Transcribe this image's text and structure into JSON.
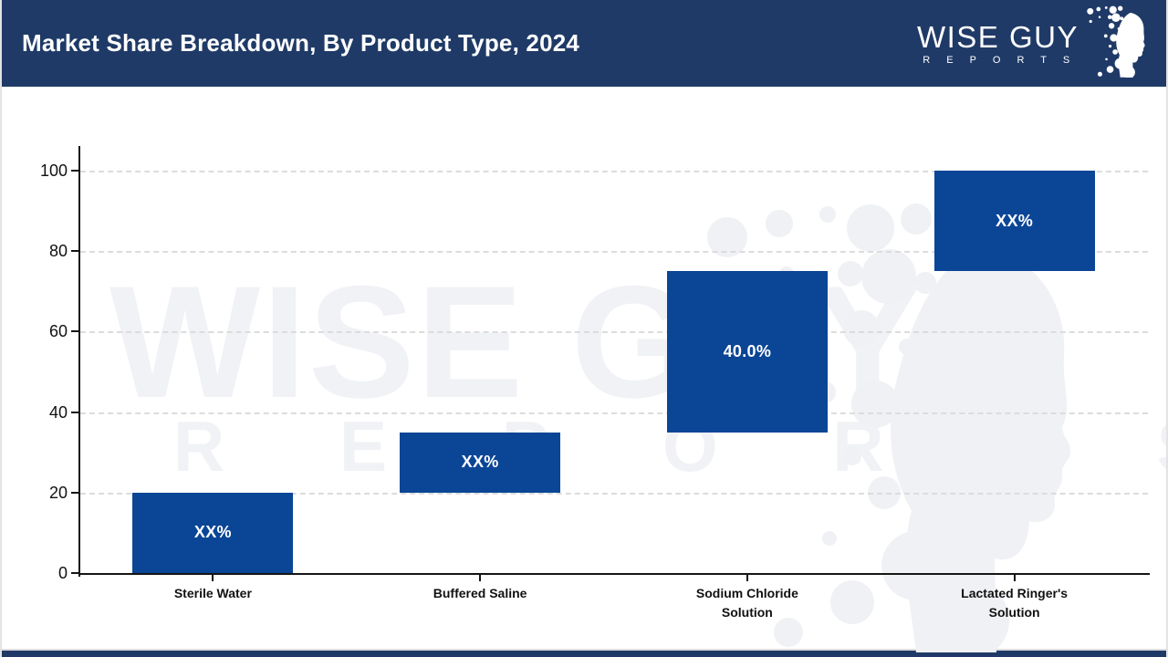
{
  "header": {
    "title": "Market Share Breakdown, By Product Type, 2024",
    "logo": {
      "name": "WISE GUY",
      "sub": "R E P O R T S"
    }
  },
  "watermark": {
    "text": "WISE GUY",
    "sub": "R E P O R T S"
  },
  "colors": {
    "header_bg": "#1f3a67",
    "bar_blue": "#0b4596",
    "gridline": "#dcdcdc",
    "watermark": "#f0f2f5",
    "axis_text": "#111111",
    "bar_label_text": "#ffffff"
  },
  "chart_data": {
    "type": "bar",
    "subtype": "floating-waterfall",
    "title": "Market Share Breakdown, By Product Type, 2024",
    "categories": [
      "Sterile Water",
      "Buffered Saline",
      "Sodium Chloride Solution",
      "Lactated Ringer's Solution"
    ],
    "bars": [
      {
        "category": "Sterile Water",
        "start": 0,
        "end": 20,
        "label": "XX%"
      },
      {
        "category": "Buffered Saline",
        "start": 20,
        "end": 35,
        "label": "XX%"
      },
      {
        "category": "Sodium Chloride Solution",
        "start": 35,
        "end": 75,
        "label": "40.0%"
      },
      {
        "category": "Lactated Ringer's Solution",
        "start": 75,
        "end": 100,
        "label": "XX%"
      }
    ],
    "ylim": [
      0,
      100
    ],
    "yticks": [
      0,
      20,
      40,
      60,
      80,
      100
    ],
    "unit": "percent",
    "grid": "horizontal-dashed",
    "legend": "none",
    "bar_color": "#0b4596"
  }
}
